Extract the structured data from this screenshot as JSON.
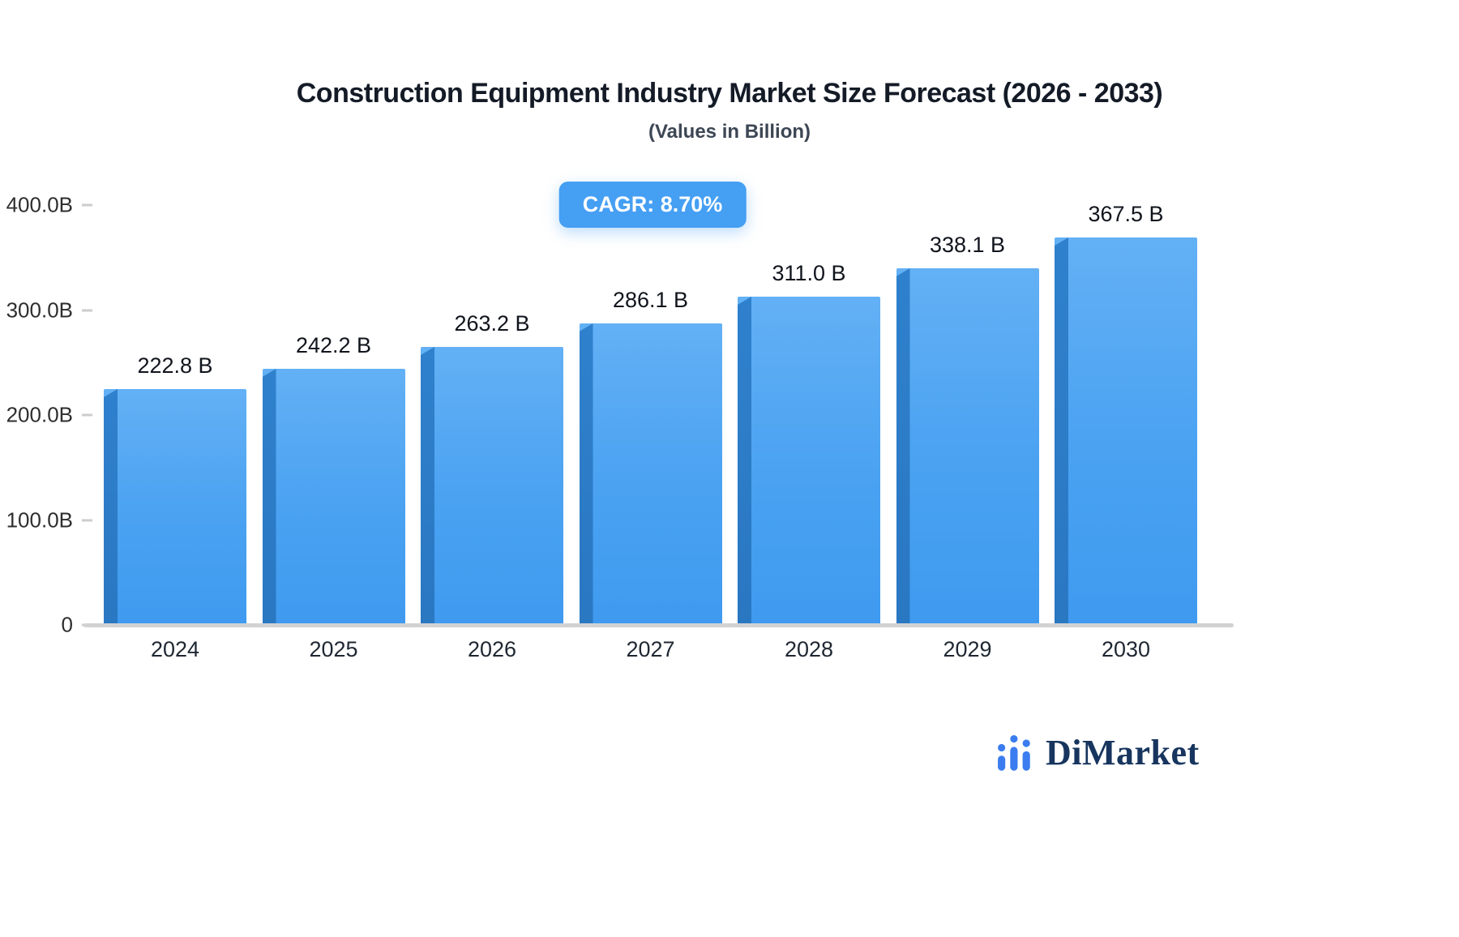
{
  "header": {
    "title": "Construction Equipment Industry Market Size Forecast (2026 - 2033)",
    "subtitle": "(Values in Billion)",
    "cagr_label": "CAGR: 8.70%"
  },
  "chart_data": {
    "type": "bar",
    "title": "Construction Equipment Industry Market Size Forecast (2026 - 2033)",
    "subtitle": "(Values in Billion)",
    "categories": [
      "2024",
      "2025",
      "2026",
      "2027",
      "2028",
      "2029",
      "2030"
    ],
    "values": [
      222.8,
      242.2,
      263.2,
      286.1,
      311.0,
      338.1,
      367.5
    ],
    "value_labels": [
      "222.8 B",
      "242.2 B",
      "263.2 B",
      "286.1 B",
      "311.0 B",
      "338.1 B",
      "367.5 B"
    ],
    "xlabel": "",
    "ylabel": "",
    "ylim": [
      0,
      400
    ],
    "ytick_labels": [
      "400.0B",
      "300.0B",
      "200.0B",
      "100.0B",
      "0"
    ],
    "grid": false,
    "legend_position": "none",
    "bar_color": "#4aa2f1",
    "bar_side_color": "#2a77c2",
    "annotation": "CAGR: 8.70%"
  },
  "colors": {
    "accent_blue": "#459ff3",
    "bar_gradient_top": "#63b0f5",
    "bar_gradient_bottom": "#3f9af0",
    "bar_side": "#2a77c2",
    "axis_line": "#d2d2d2",
    "title_text": "#141b27",
    "brand_navy": "#17355e",
    "brand_blue": "#3b7df0"
  },
  "branding": {
    "logo_text": "DiMarket",
    "logo_icon": "bar-chart-icon"
  }
}
